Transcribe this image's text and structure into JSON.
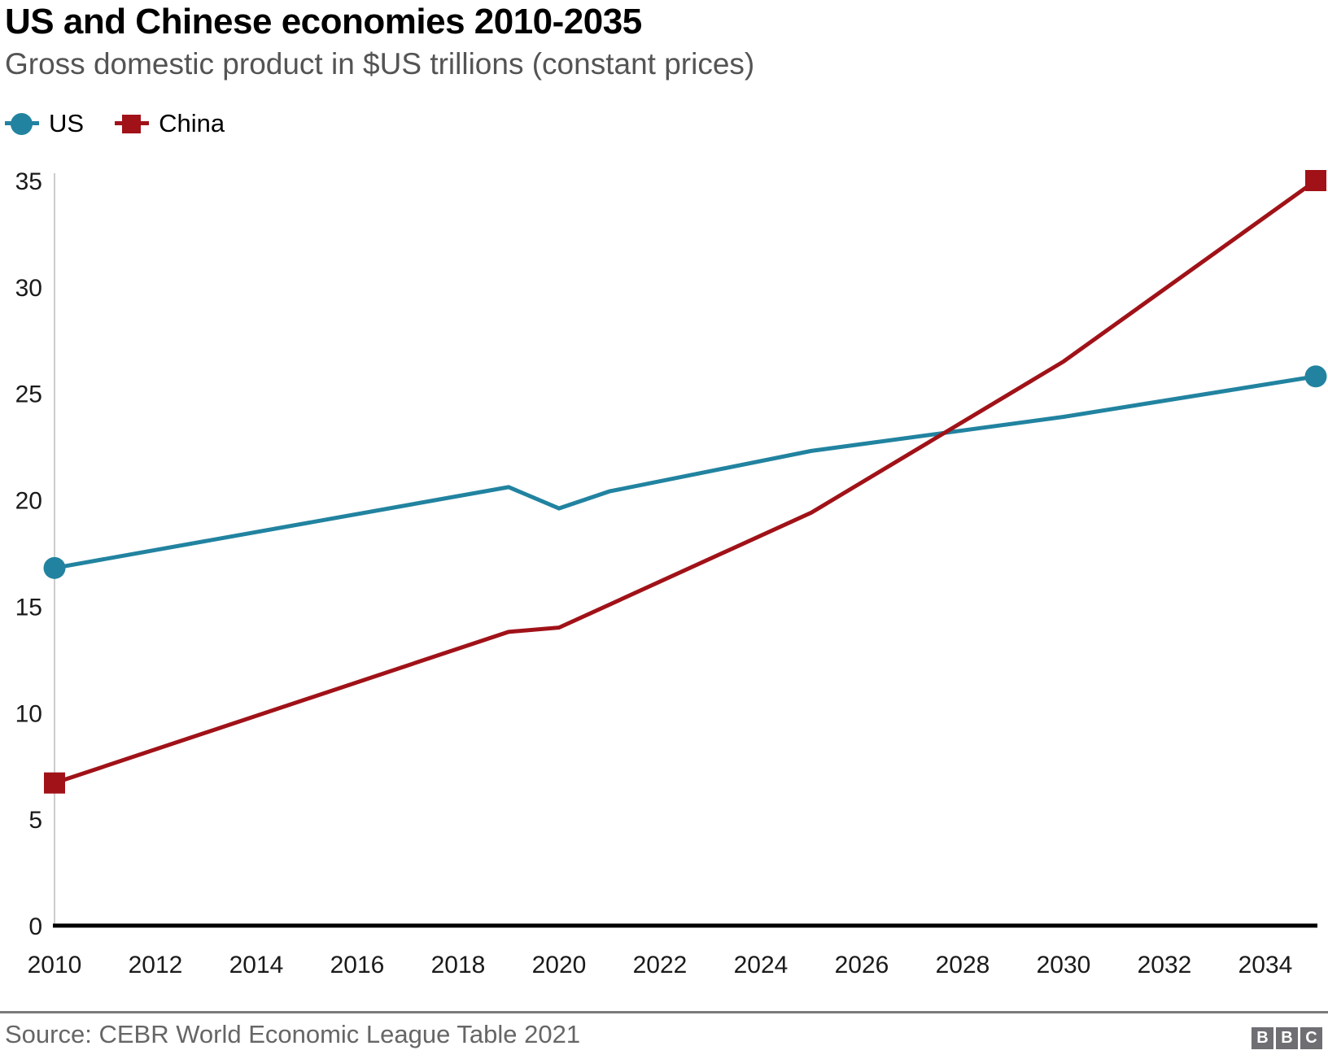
{
  "header": {
    "title": "US and Chinese economies 2010-2035",
    "subtitle": "Gross domestic product in $US trillions (constant prices)"
  },
  "legend": {
    "items": [
      {
        "label": "US",
        "color": "#2183A0",
        "marker": "circle"
      },
      {
        "label": "China",
        "color": "#A01218",
        "marker": "square"
      }
    ]
  },
  "footer": {
    "source": "Source: CEBR World Economic League Table 2021",
    "logo_letters": [
      "B",
      "B",
      "C"
    ]
  },
  "colors": {
    "us_teal": "#2183A0",
    "china_red": "#A01218",
    "subtitle_gray": "#545454",
    "y_axis_line": "#CCCCCC",
    "x_axis_line": "#000000",
    "tick_text": "#1a1a1a",
    "divider_gray": "#7a7a7a",
    "source_gray": "#666666",
    "logo_gray": "#6E6E73"
  },
  "chart_data": {
    "type": "line",
    "title": "US and Chinese economies 2010-2035",
    "subtitle": "Gross domestic product in $US trillions (constant prices)",
    "xlabel": "",
    "ylabel": "Gross domestic product in $US trillions (constant prices)",
    "x_range": [
      2010,
      2035
    ],
    "y_range": [
      0,
      35
    ],
    "x_ticks": [
      2010,
      2012,
      2014,
      2016,
      2018,
      2020,
      2022,
      2024,
      2026,
      2028,
      2030,
      2032,
      2034
    ],
    "y_ticks": [
      0,
      5,
      10,
      15,
      20,
      25,
      30,
      35
    ],
    "grid": false,
    "legend_position": "top-left",
    "series": [
      {
        "name": "US",
        "color": "#2183A0",
        "marker": "circle",
        "points": [
          [
            2010,
            16.8
          ],
          [
            2019,
            20.6
          ],
          [
            2020,
            19.6
          ],
          [
            2021,
            20.4
          ],
          [
            2025,
            22.3
          ],
          [
            2030,
            23.9
          ],
          [
            2035,
            25.8
          ]
        ]
      },
      {
        "name": "China",
        "color": "#A01218",
        "marker": "square",
        "points": [
          [
            2010,
            6.7
          ],
          [
            2019,
            13.8
          ],
          [
            2020,
            14.0
          ],
          [
            2025,
            19.4
          ],
          [
            2030,
            26.5
          ],
          [
            2035,
            35.0
          ]
        ]
      }
    ],
    "annotations": []
  }
}
